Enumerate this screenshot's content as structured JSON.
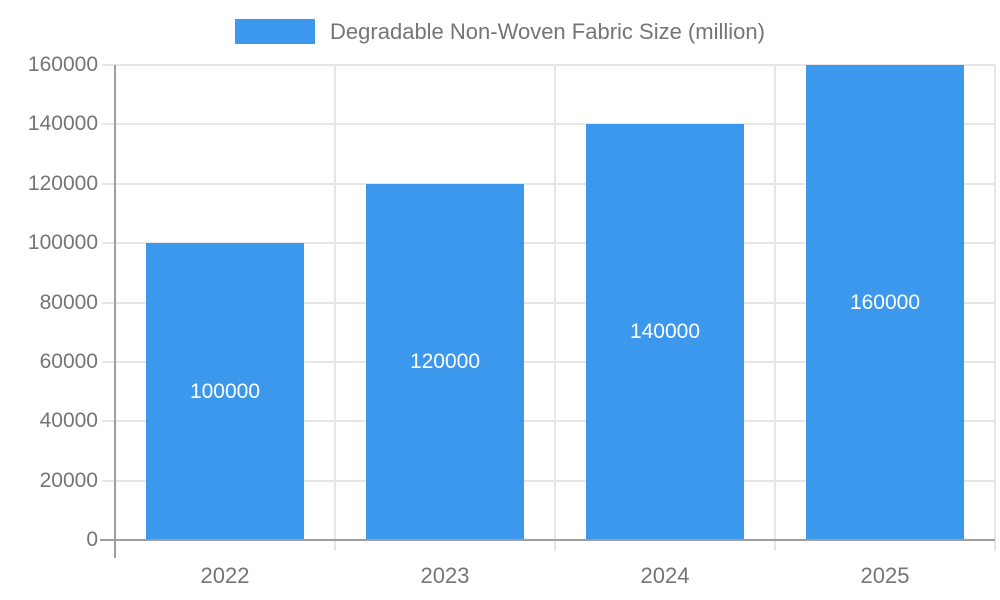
{
  "legend": {
    "label": "Degradable Non-Woven Fabric Size (million)"
  },
  "chart_data": {
    "type": "bar",
    "title": "Degradable Non-Woven Fabric Size (million)",
    "categories": [
      "2022",
      "2023",
      "2024",
      "2025"
    ],
    "values": [
      100000,
      120000,
      140000,
      160000
    ],
    "bar_labels": [
      "100000",
      "120000",
      "140000",
      "160000"
    ],
    "xlabel": "",
    "ylabel": "",
    "ylim": [
      0,
      160000
    ],
    "yticks": [
      0,
      20000,
      40000,
      60000,
      80000,
      100000,
      120000,
      140000,
      160000
    ],
    "ytick_labels": [
      "0",
      "20000",
      "40000",
      "60000",
      "80000",
      "100000",
      "120000",
      "140000",
      "160000"
    ],
    "grid": true,
    "legend_position": "top",
    "bar_group_width_ratio": 0.718,
    "colors": {
      "bar": "#3B98EC",
      "grid": "#E6E6E6",
      "axis": "#9E9E9E",
      "tick_label": "#757575",
      "bar_label": "#FFFFFF",
      "legend_text": "#757575",
      "background": "#FFFFFF"
    }
  }
}
